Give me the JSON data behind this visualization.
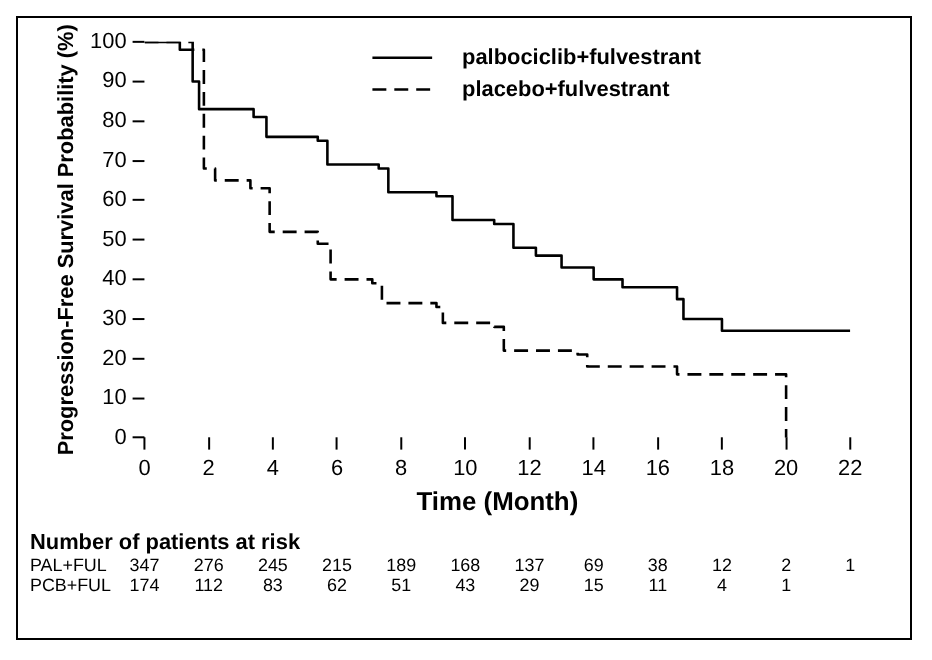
{
  "chart_data": {
    "type": "step",
    "xlabel": "Time (Month)",
    "ylabel": "Progression-Free Survival Probability (%)",
    "xlim": [
      0,
      22
    ],
    "xticks": [
      0,
      2,
      4,
      6,
      8,
      10,
      12,
      14,
      16,
      18,
      20,
      22
    ],
    "ylim": [
      0,
      100
    ],
    "yticks": [
      0,
      10,
      20,
      30,
      40,
      50,
      60,
      70,
      80,
      90,
      100
    ],
    "grid": false,
    "legend": "top right",
    "marker": "none",
    "series": [
      {
        "name": "palbociclib+fulvestrant",
        "color": "#000000",
        "line_style": "solid",
        "x": [
          0,
          1.1,
          1.5,
          1.7,
          3.4,
          3.8,
          5.4,
          5.7,
          7.3,
          7.6,
          9.1,
          9.6,
          10.9,
          11.5,
          12.2,
          13,
          14,
          14.9,
          16.6,
          16.8,
          18,
          22
        ],
        "values": [
          100,
          98,
          90,
          83,
          81,
          76,
          75,
          69,
          68,
          62,
          61,
          55,
          54,
          48,
          46,
          43,
          40,
          38,
          35,
          30,
          27,
          27
        ]
      },
      {
        "name": "placebo+fulvestrant",
        "color": "#000000",
        "line_style": "dashed",
        "x": [
          0,
          1.5,
          1.85,
          2.2,
          3.3,
          3.9,
          5.4,
          5.8,
          7.1,
          7.4,
          9.1,
          9.3,
          10.9,
          11.2,
          13.5,
          13.8,
          16.6,
          20,
          20
        ],
        "values": [
          100,
          98,
          68,
          65,
          63,
          52,
          49,
          40,
          39,
          34,
          33,
          29,
          28,
          22,
          21,
          18,
          16,
          16,
          0
        ]
      }
    ],
    "annotations": [
      "Number of patients at risk",
      "PAL+FUL 347 276 245 215 189 168 137 69 38 12 2 1",
      "PCB+FUL 174 112 83 62 51 43 29 15 11 4 1"
    ]
  }
}
